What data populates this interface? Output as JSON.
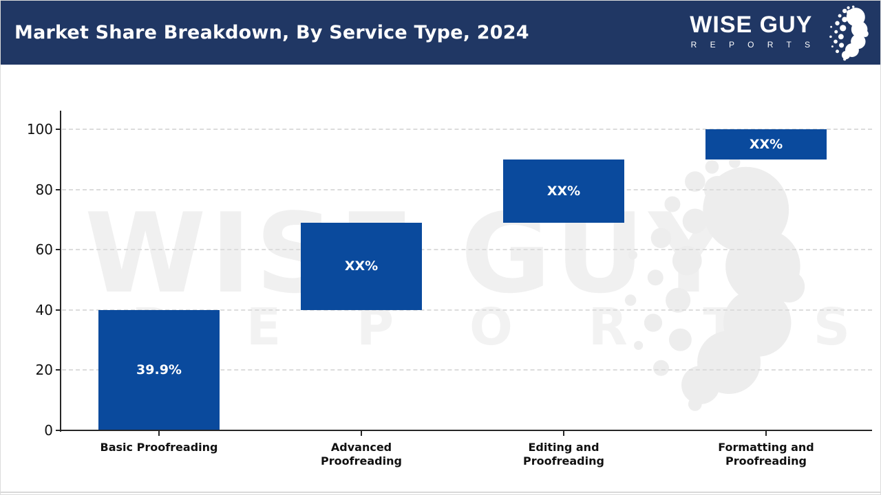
{
  "header": {
    "title": "Market Share Breakdown, By Service Type, 2024",
    "logo": {
      "name": "WISE GUY",
      "sub": "R E P O R T S"
    }
  },
  "watermark": {
    "line1": "WISE GUY",
    "line2": "R E P O R T S"
  },
  "chart_data": {
    "type": "bar",
    "variant": "waterfall-floating-bars",
    "title": "Market Share Breakdown, By Service Type, 2024",
    "unit": "%",
    "categories": [
      [
        "Basic Proofreading"
      ],
      [
        "Advanced",
        "Proofreading"
      ],
      [
        "Editing and",
        "Proofreading"
      ],
      [
        "Formatting and",
        "Proofreading"
      ]
    ],
    "bars": [
      {
        "category": "Basic Proofreading",
        "start": 0,
        "end": 40,
        "label": "39.9%"
      },
      {
        "category": "Advanced Proofreading",
        "start": 40,
        "end": 69,
        "label": "XX%"
      },
      {
        "category": "Editing and Proofreading",
        "start": 69,
        "end": 90,
        "label": "XX%"
      },
      {
        "category": "Formatting and Proofreading",
        "start": 90,
        "end": 100,
        "label": "XX%"
      }
    ],
    "yticks": [
      0,
      20,
      40,
      60,
      80,
      100
    ],
    "ylim": [
      0,
      105
    ],
    "grid": "horizontal-dashed",
    "legend": "none",
    "bar_color": "#0a4a9d",
    "bar_label_color": "#ffffff",
    "header_color": "#203764"
  }
}
